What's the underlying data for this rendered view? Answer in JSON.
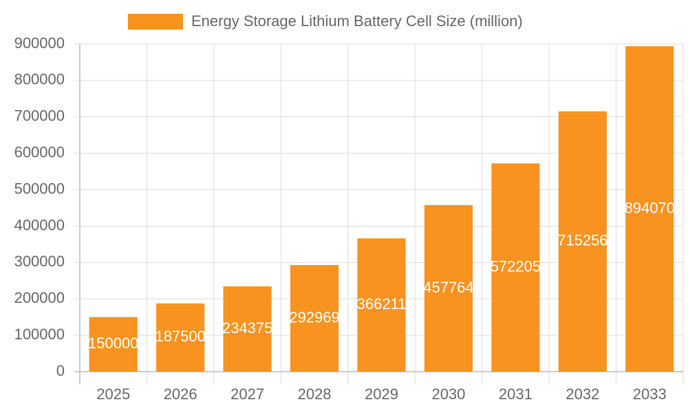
{
  "chart_data": {
    "type": "bar",
    "legend": "Energy Storage Lithium Battery Cell Size (million)",
    "categories": [
      "2025",
      "2026",
      "2027",
      "2028",
      "2029",
      "2030",
      "2031",
      "2032",
      "2033"
    ],
    "values": [
      150000,
      187500,
      234375,
      292969,
      366211,
      457764,
      572205,
      715256,
      894070
    ],
    "color": "#f7931e",
    "ylim": [
      0,
      900000
    ],
    "yticks": [
      0,
      100000,
      200000,
      300000,
      400000,
      500000,
      600000,
      700000,
      800000,
      900000
    ],
    "grid": true
  }
}
